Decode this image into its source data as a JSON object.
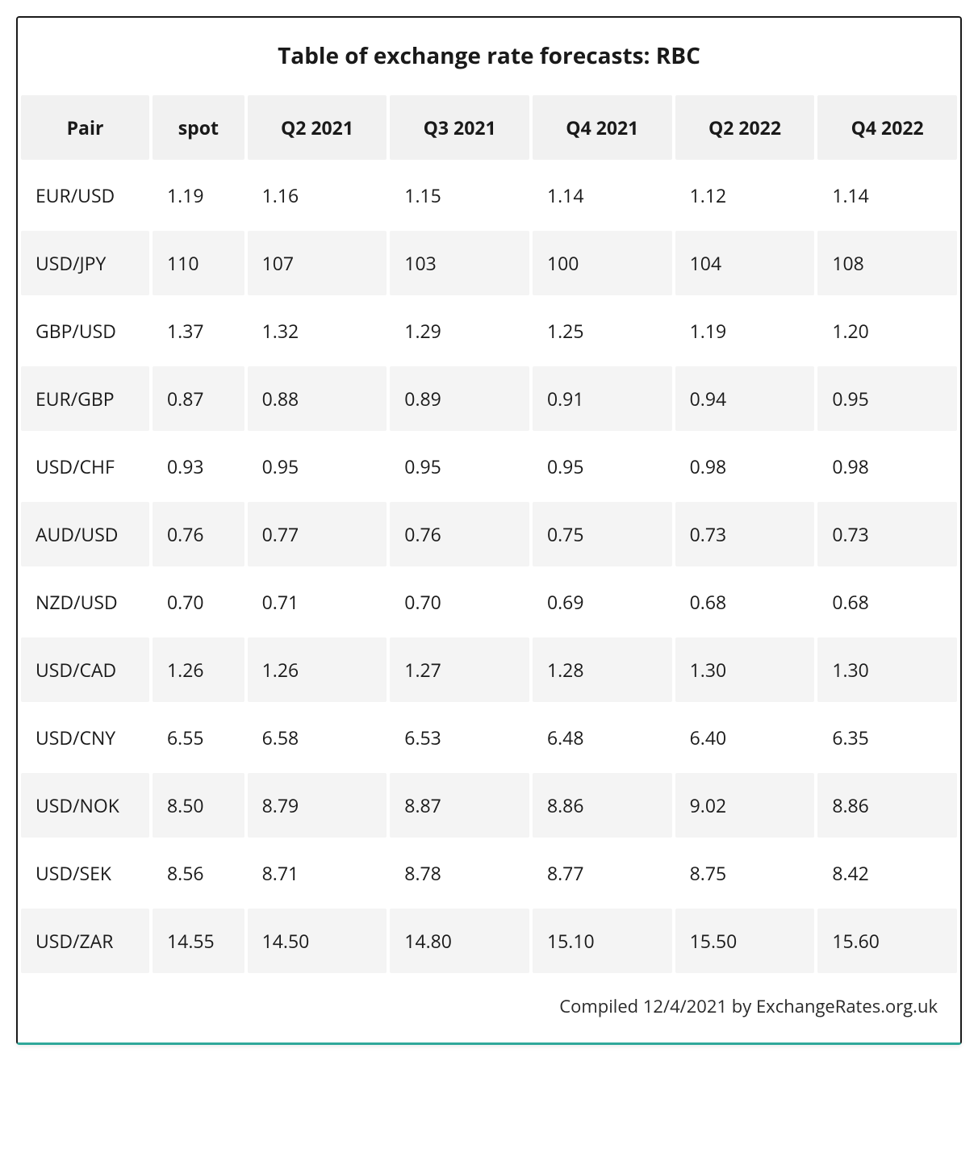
{
  "table": {
    "type": "table",
    "title": "Table of exchange rate forecasts: RBC",
    "columns": [
      "Pair",
      "spot",
      "Q2 2021",
      "Q3 2021",
      "Q4 2021",
      "Q2 2022",
      "Q4 2022"
    ],
    "rows": [
      [
        "EUR/USD",
        "1.19",
        "1.16",
        "1.15",
        "1.14",
        "1.12",
        "1.14"
      ],
      [
        "USD/JPY",
        "110",
        "107",
        "103",
        "100",
        "104",
        "108"
      ],
      [
        "GBP/USD",
        "1.37",
        "1.32",
        "1.29",
        "1.25",
        "1.19",
        "1.20"
      ],
      [
        "EUR/GBP",
        "0.87",
        "0.88",
        "0.89",
        "0.91",
        "0.94",
        "0.95"
      ],
      [
        "USD/CHF",
        "0.93",
        "0.95",
        "0.95",
        "0.95",
        "0.98",
        "0.98"
      ],
      [
        "AUD/USD",
        "0.76",
        "0.77",
        "0.76",
        "0.75",
        "0.73",
        "0.73"
      ],
      [
        "NZD/USD",
        "0.70",
        "0.71",
        "0.70",
        "0.69",
        "0.68",
        "0.68"
      ],
      [
        "USD/CAD",
        "1.26",
        "1.26",
        "1.27",
        "1.28",
        "1.30",
        "1.30"
      ],
      [
        "USD/CNY",
        "6.55",
        "6.58",
        "6.53",
        "6.48",
        "6.40",
        "6.35"
      ],
      [
        "USD/NOK",
        "8.50",
        "8.79",
        "8.87",
        "8.86",
        "9.02",
        "8.86"
      ],
      [
        "USD/SEK",
        "8.56",
        "8.71",
        "8.78",
        "8.77",
        "8.75",
        "8.42"
      ],
      [
        "USD/ZAR",
        "14.55",
        "14.50",
        "14.80",
        "15.10",
        "15.50",
        "15.60"
      ]
    ],
    "alt_row_background": "#f4f4f4",
    "row_background": "#ffffff",
    "header_background": "#f1f1f1",
    "border_color": "#1a1a1a",
    "accent_bottom_border": "#2fa89a",
    "title_fontsize": 28,
    "cell_fontsize": 23,
    "footer_fontsize": 22,
    "column_widths_pct": [
      14,
      10,
      15.2,
      15.2,
      15.2,
      15.2,
      15.2
    ],
    "footer": "Compiled 12/4/2021 by ExchangeRates.org.uk"
  }
}
